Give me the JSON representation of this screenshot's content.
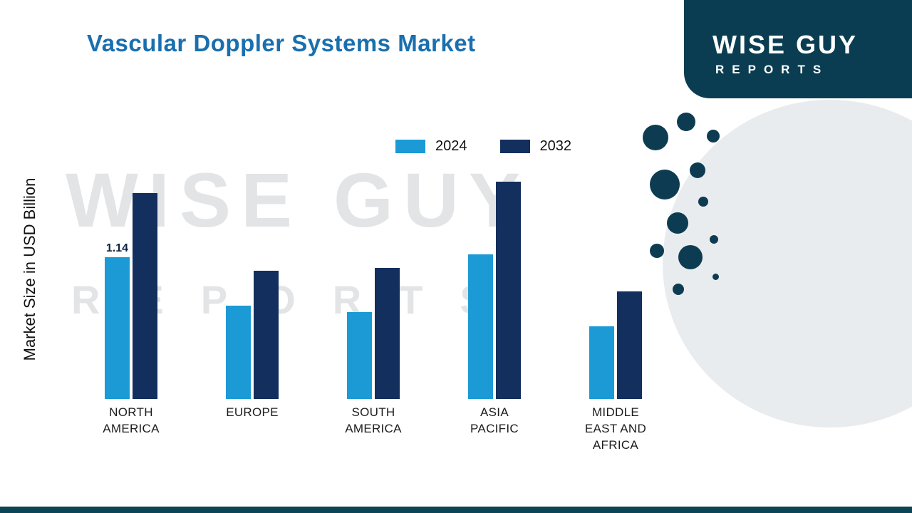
{
  "page": {
    "title": "Vascular Doppler Systems Market"
  },
  "logo": {
    "line1": "WISE GUY",
    "line2": "REPORTS"
  },
  "watermark": {
    "line1": "WISE GUY",
    "line2": "REPORTS"
  },
  "colors": {
    "series_2024": "#1b9ad6",
    "series_2032": "#132f5e",
    "title_blue": "#1a6fae",
    "logo_bg": "#0a3d52",
    "bottom_strip": "#0b4556"
  },
  "chart_data": {
    "type": "bar",
    "title": "Vascular Doppler Systems Market",
    "xlabel": "",
    "ylabel": "Market Size in USD Billion",
    "categories": [
      "NORTH AMERICA",
      "EUROPE",
      "SOUTH AMERICA",
      "ASIA PACIFIC",
      "MIDDLE EAST AND AFRICA"
    ],
    "series": [
      {
        "name": "2024",
        "color": "#1b9ad6",
        "values": [
          1.14,
          0.75,
          0.7,
          1.16,
          0.58
        ]
      },
      {
        "name": "2032",
        "color": "#132f5e",
        "values": [
          1.65,
          1.03,
          1.05,
          1.74,
          0.86
        ]
      }
    ],
    "data_labels": [
      {
        "series": "2024",
        "category": "NORTH AMERICA",
        "text": "1.14"
      }
    ],
    "ylim": [
      0,
      1.8
    ],
    "grid": false,
    "legend_position": "top-center"
  }
}
